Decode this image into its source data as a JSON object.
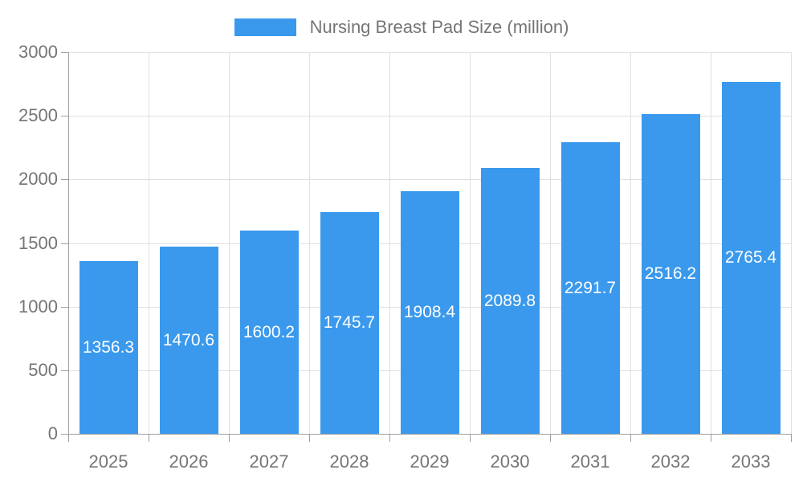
{
  "chart_data": {
    "type": "bar",
    "title": "Nursing Breast Pad Size (million)",
    "categories": [
      "2025",
      "2026",
      "2027",
      "2028",
      "2029",
      "2030",
      "2031",
      "2032",
      "2033"
    ],
    "values": [
      1356.3,
      1470.6,
      1600.2,
      1745.7,
      1908.4,
      2089.8,
      2291.7,
      2516.2,
      2765.4
    ],
    "value_labels": [
      "1356.3",
      "1470.6",
      "1600.2",
      "1745.7",
      "1908.4",
      "2089.8",
      "2291.7",
      "2516.2",
      "2765.4"
    ],
    "xlabel": "",
    "ylabel": "",
    "ylim": [
      0,
      3000
    ],
    "y_ticks": [
      0,
      500,
      1000,
      1500,
      2000,
      2500,
      3000
    ],
    "grid": true,
    "legend_position": "top",
    "bar_color": "#3A99EC",
    "value_label_color": "#ffffff",
    "axis_text_color": "#757575",
    "grid_color": "#e0e0e0",
    "axis_line_color": "#9e9e9e",
    "background": "#ffffff"
  },
  "legend": {
    "label": "Nursing Breast Pad Size (million)"
  }
}
